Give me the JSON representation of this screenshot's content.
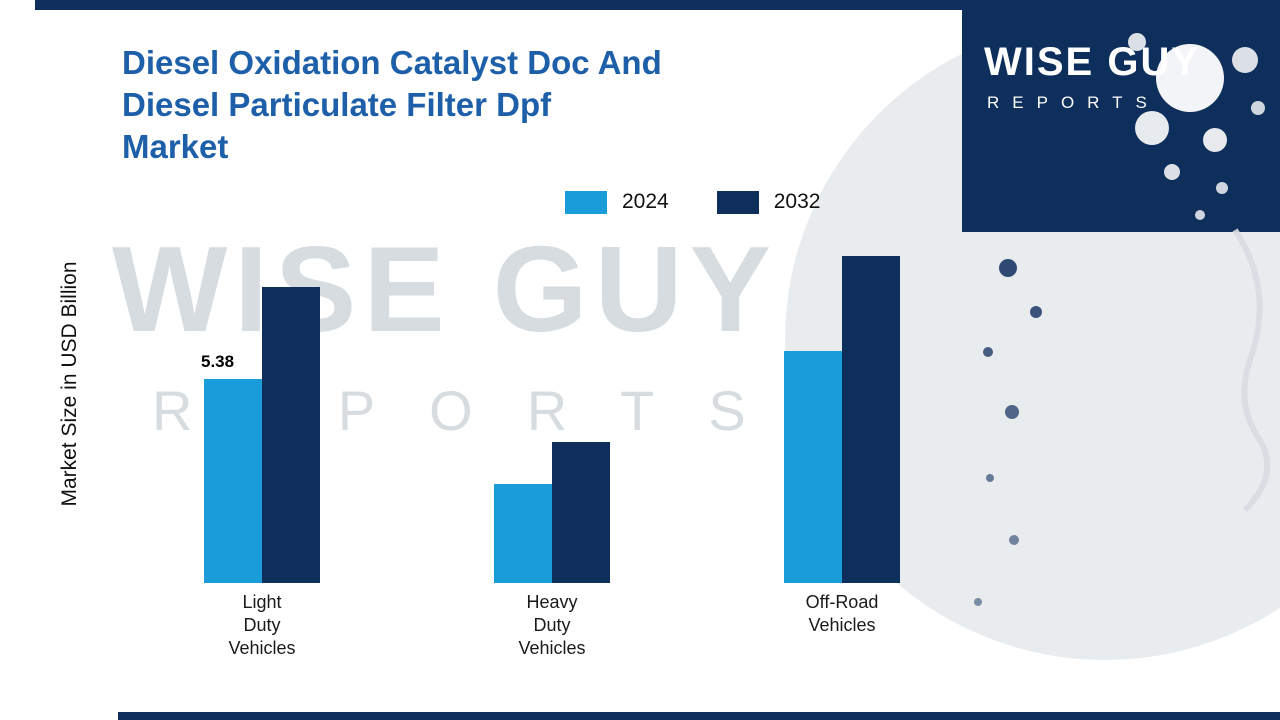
{
  "header": {
    "title": "Diesel Oxidation Catalyst  Doc  And\nDiesel Particulate Filter  Dpf\nMarket"
  },
  "logo": {
    "line1": "WISE GUY",
    "line2": "REPORTS"
  },
  "chart_data": {
    "type": "bar",
    "title": "Diesel Oxidation Catalyst Doc And Diesel Particulate Filter Dpf Market",
    "xlabel": "",
    "ylabel": "Market Size in USD Billion",
    "categories": [
      "Light Duty Vehicles",
      "Heavy Duty Vehicles",
      "Off-Road Vehicles"
    ],
    "category_label_lines": [
      "Light\nDuty\nVehicles",
      "Heavy\nDuty\nVehicles",
      "Off-Road\nVehicles"
    ],
    "series": [
      {
        "name": "2024",
        "color": "#1a9cd8",
        "values": [
          5.38,
          2.6,
          6.1
        ],
        "data_labels": [
          "5.38",
          "",
          ""
        ]
      },
      {
        "name": "2032",
        "color": "#0e2e5c",
        "values": [
          7.8,
          3.7,
          8.6
        ],
        "data_labels": [
          "",
          "",
          ""
        ]
      }
    ],
    "ylim": [
      0,
      9
    ],
    "legend_position": "top",
    "grid": false
  },
  "colors": {
    "title": "#1d5fa9",
    "accent_light_blue": "#1a9cd8",
    "accent_navy": "#0e2e5c",
    "watermark": "#d7dce1",
    "background": "#ffffff"
  }
}
